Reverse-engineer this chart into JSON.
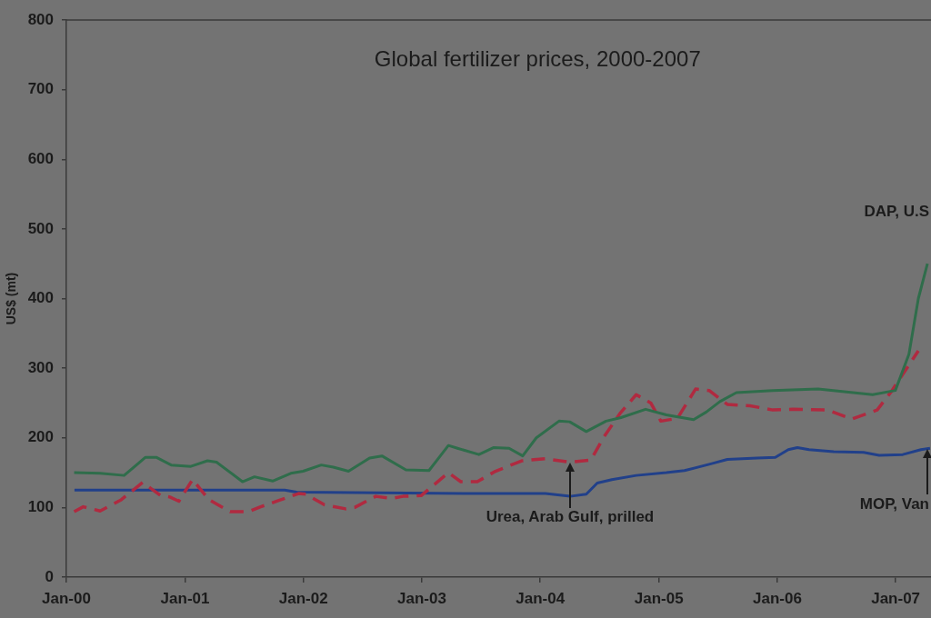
{
  "chart_data": {
    "type": "line",
    "title": "Global fertilizer prices, 2000-2007",
    "ylabel": "US$ (mt)",
    "xlim": [
      "2000-01-01",
      "2007-04-20"
    ],
    "xticks": [
      {
        "value": "2000-01",
        "label": "Jan-00"
      },
      {
        "value": "2001-01",
        "label": "Jan-01"
      },
      {
        "value": "2002-01",
        "label": "Jan-02"
      },
      {
        "value": "2003-01",
        "label": "Jan-03"
      },
      {
        "value": "2004-01",
        "label": "Jan-04"
      },
      {
        "value": "2005-01",
        "label": "Jan-05"
      },
      {
        "value": "2006-01",
        "label": "Jan-06"
      },
      {
        "value": "2007-01",
        "label": "Jan-07"
      }
    ],
    "ylim": [
      0,
      800
    ],
    "yticks": [
      0,
      100,
      200,
      300,
      400,
      500,
      600,
      700,
      800
    ],
    "marker": "none",
    "annotations": [
      "DAP, U.S",
      {
        "text": "Urea, Arab Gulf, prilled",
        "x": "2004-04-02",
        "y": 165
      },
      {
        "text": "MOP, Van",
        "x": "2007-04-09",
        "y": 184
      }
    ],
    "series": [
      {
        "color": "#2f6d4b",
        "line_style": "solid",
        "x": [
          "2000-01-25",
          "2000-04-14",
          "2000-06-27",
          "2000-09-01",
          "2000-10-04",
          "2000-11-19",
          "2001-01-19",
          "2001-03-11",
          "2001-04-08",
          "2001-06-27",
          "2001-08-03",
          "2001-09-28",
          "2001-11-23",
          "2001-12-31",
          "2002-02-25",
          "2002-04-03",
          "2002-05-20",
          "2002-07-24",
          "2002-08-31",
          "2002-11-13",
          "2003-01-23",
          "2003-03-24",
          "2003-04-21",
          "2003-06-26",
          "2003-08-11",
          "2003-09-27",
          "2003-11-08",
          "2003-12-20",
          "2004-02-28",
          "2004-04-01",
          "2004-05-22",
          "2004-07-22",
          "2004-09-06",
          "2004-11-21",
          "2005-01-24",
          "2005-04-18",
          "2005-05-27",
          "2005-07-08",
          "2005-08-28",
          "2005-12-18",
          "2006-05-07",
          "2006-10-22",
          "2006-12-31",
          "2007-02-11",
          "2007-03-12",
          "2007-04-09"
        ],
        "values": [
          150,
          149,
          146,
          172,
          172,
          161,
          159,
          167,
          165,
          137,
          144,
          138,
          149,
          152,
          161,
          158,
          152,
          171,
          174,
          154,
          153,
          189,
          185,
          176,
          186,
          185,
          174,
          200,
          224,
          223,
          209,
          224,
          229,
          241,
          233,
          226,
          237,
          252,
          265,
          268,
          270,
          262,
          268,
          320,
          400,
          450
        ]
      },
      {
        "color": "#b02a40",
        "line_style": "dashed",
        "x": [
          "2000-01-25",
          "2000-02-22",
          "2000-04-14",
          "2000-06-18",
          "2000-08-23",
          "2000-10-18",
          "2000-11-15",
          "2000-12-13",
          "2001-01-24",
          "2001-03-16",
          "2001-05-20",
          "2001-07-16",
          "2001-08-22",
          "2001-10-17",
          "2001-12-17",
          "2002-01-09",
          "2002-03-06",
          "2002-05-11",
          "2002-06-08",
          "2002-08-12",
          "2002-09-28",
          "2002-11-04",
          "2002-12-30",
          "2003-01-27",
          "2003-03-24",
          "2003-05-01",
          "2003-06-21",
          "2003-08-16",
          "2003-11-05",
          "2004-01-17",
          "2004-04-02",
          "2004-06-05",
          "2004-07-15",
          "2004-09-03",
          "2004-10-23",
          "2004-12-07",
          "2005-01-07",
          "2005-02-27",
          "2005-04-24",
          "2005-06-05",
          "2005-07-31",
          "2005-10-09",
          "2005-12-18",
          "2006-02-18",
          "2006-06-04",
          "2006-08-19",
          "2006-11-05",
          "2006-12-18",
          "2007-03-12"
        ],
        "values": [
          94,
          101,
          95,
          111,
          136,
          117,
          115,
          109,
          140,
          111,
          94,
          94,
          101,
          110,
          120,
          119,
          104,
          98,
          100,
          116,
          113,
          116,
          117,
          128,
          150,
          137,
          137,
          152,
          167,
          170,
          165,
          168,
          201,
          235,
          262,
          250,
          224,
          228,
          270,
          268,
          248,
          246,
          240,
          241,
          240,
          227,
          240,
          266,
          325
        ]
      },
      {
        "color": "#21408a",
        "line_style": "solid",
        "x": [
          "2000-01-26",
          "2001-11-04",
          "2001-12-11",
          "2003-06-07",
          "2004-01-17",
          "2004-04-02",
          "2004-05-22",
          "2004-06-25",
          "2004-08-09",
          "2004-10-23",
          "2005-01-24",
          "2005-03-21",
          "2005-06-13",
          "2005-07-31",
          "2005-10-31",
          "2005-12-26",
          "2006-02-04",
          "2006-03-04",
          "2006-04-09",
          "2006-06-24",
          "2006-09-24",
          "2006-11-11",
          "2007-01-23",
          "2007-03-20",
          "2007-04-17"
        ],
        "values": [
          125,
          125,
          122,
          120,
          120,
          116,
          119,
          135,
          140,
          146,
          150,
          153,
          163,
          169,
          171,
          172,
          183,
          186,
          183,
          180,
          179,
          175,
          176,
          183,
          185
        ]
      }
    ]
  }
}
